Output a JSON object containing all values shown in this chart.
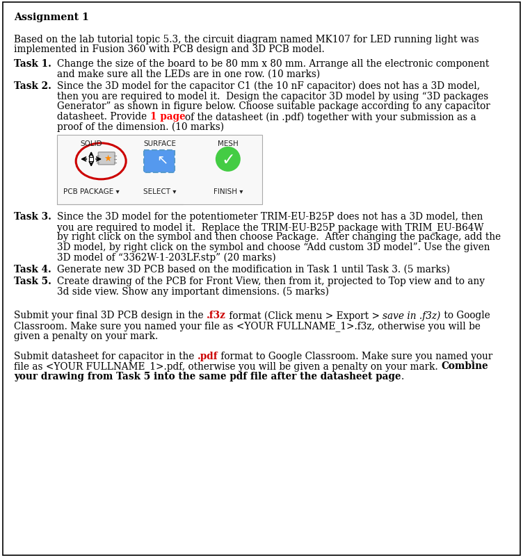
{
  "bg_color": "#ffffff",
  "figsize": [
    7.52,
    8.04
  ],
  "dpi": 100,
  "title": "Assignment 1",
  "intro_line1": "Based on the lab tutorial topic 5.3, the circuit diagram named MK107 for LED running light was",
  "intro_line2": "implemented in Fusion 360 with PCB design and 3D PCB model.",
  "task1_label": "Task 1.",
  "task1_lines": [
    "Change the size of the board to be 80 mm x 80 mm. Arrange all the electronic component",
    "and make sure all the LEDs are in one row. (10 marks)"
  ],
  "task2_label": "Task 2.",
  "task2_lines": [
    "Since the 3D model for the capacitor C1 (the 10 nF capacitor) does not has a 3D model,",
    "then you are required to model it.  Design the capacitor 3D model by using “3D packages",
    "Generator” as shown in figure below. Choose suitable package according to any capacitor",
    "datasheet. Provide ",
    "of the datasheet (in .pdf) together with your submission as a",
    "proof of the dimension. (10 marks)"
  ],
  "task2_highlight": "1 page",
  "task3_label": "Task 3.",
  "task3_lines": [
    "Since the 3D model for the potentiometer TRIM-EU-B25P does not has a 3D model, then",
    "you are required to model it.  Replace the TRIM-EU-B25P package with TRIM_EU-B64W",
    "by right click on the symbol and then choose Package.  After changing the package, add the",
    "3D model, by right click on the symbol and choose “Add custom 3D model”. Use the given",
    "3D model of “3362W-1-203LF.stp” (20 marks)"
  ],
  "task4_label": "Task 4.",
  "task4_line": "Generate new 3D PCB based on the modification in Task 1 until Task 3. (5 marks)",
  "task5_label": "Task 5.",
  "task5_lines": [
    "Create drawing of the PCB for Front View, then from it, projected to Top view and to any",
    "3d side view. Show any important dimensions. (5 marks)"
  ],
  "sub1_line1_pre": "Submit your final 3D PCB design in the ",
  "sub1_line1_bold": ".f3z",
  "sub1_line1_mid": " format (Click menu > Export > ",
  "sub1_line1_italic": "save in .f3z)",
  "sub1_line1_post": " to Google",
  "sub1_line2": "Classroom. Make sure you named your file as <YOUR FULLNAME_1>.f3z, otherwise you will be",
  "sub1_line3": "given a penalty on your mark.",
  "sub2_line1_pre": "Submit datasheet for capacitor in the ",
  "sub2_line1_bold": ".pdf",
  "sub2_line1_post": " format to Google Classroom. Make sure you named your",
  "sub2_line2_pre": "file as <YOUR FULLNAME_1>.pdf, otherwise you will be given a penalty on your mark. ",
  "sub2_line2_bold": "Combine",
  "sub2_line3_bold": "your drawing from Task 5 into the same pdf file after the datasheet page",
  "sub2_line3_post": "."
}
